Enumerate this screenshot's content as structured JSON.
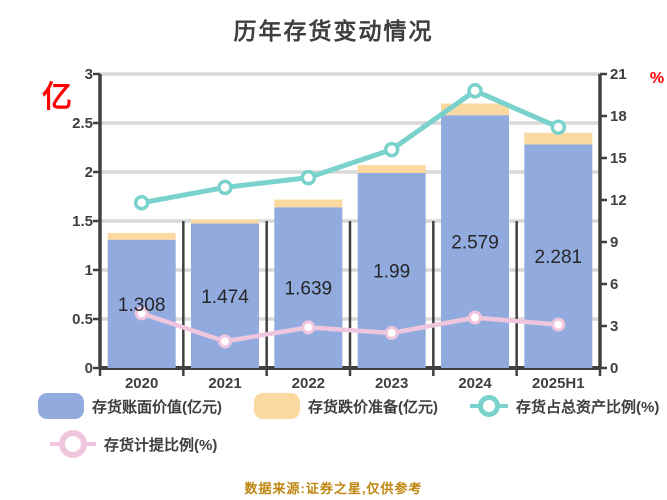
{
  "title": "历年存货变动情况",
  "footer": "数据来源:证券之星,仅供参考",
  "colors": {
    "bar_primary": "#92abdf",
    "bar_secondary": "#fbd9a0",
    "line_teal": "#7ad2cc",
    "line_pink": "#f0c6de",
    "gridline": "#d9d9d9",
    "axis": "#404040",
    "tick_text": "#3f3f3f",
    "bar_label_text": "#262626",
    "unit_red": "#ff0000",
    "footer_text": "#bf8712"
  },
  "chart_data": {
    "type": "bar",
    "title": "历年存货变动情况",
    "categories": [
      "2020",
      "2021",
      "2022",
      "2023",
      "2024",
      "2025H1"
    ],
    "series": [
      {
        "name": "存货账面价值(亿元)",
        "type": "bar",
        "axis": "left",
        "color": "#92abdf",
        "values": [
          1.308,
          1.474,
          1.639,
          1.99,
          2.579,
          2.281
        ],
        "labels": [
          "1.308",
          "1.474",
          "1.639",
          "1.99",
          "2.579",
          "2.281"
        ]
      },
      {
        "name": "存货跌价准备(亿元)",
        "type": "bar-stacked",
        "axis": "left",
        "color": "#fbd9a0",
        "values": [
          0.07,
          0.04,
          0.08,
          0.08,
          0.12,
          0.12
        ],
        "estimated": true
      },
      {
        "name": "存货占总资产比例(%)",
        "type": "line",
        "axis": "right",
        "color": "#7ad2cc",
        "values": [
          11.8,
          12.9,
          13.6,
          15.6,
          19.8,
          17.2
        ],
        "estimated": true
      },
      {
        "name": "存货计提比例(%)",
        "type": "line",
        "axis": "right",
        "color": "#f0c6de",
        "values": [
          3.9,
          1.9,
          2.9,
          2.5,
          3.6,
          3.1
        ],
        "estimated": true
      }
    ],
    "left_axis": {
      "min": 0,
      "max": 3,
      "tick_labels": [
        "3",
        "2.5",
        "2",
        "1.5",
        "1",
        "0.5",
        "0"
      ],
      "unit": "亿",
      "unit_color": "#ff0000"
    },
    "right_axis": {
      "min": 0,
      "max": 21,
      "tick_labels": [
        "21",
        "18",
        "15",
        "12",
        "9",
        "6",
        "3",
        "0"
      ],
      "unit": "%",
      "unit_color": "#ff0000"
    },
    "grid": true,
    "legend_position": "bottom"
  }
}
